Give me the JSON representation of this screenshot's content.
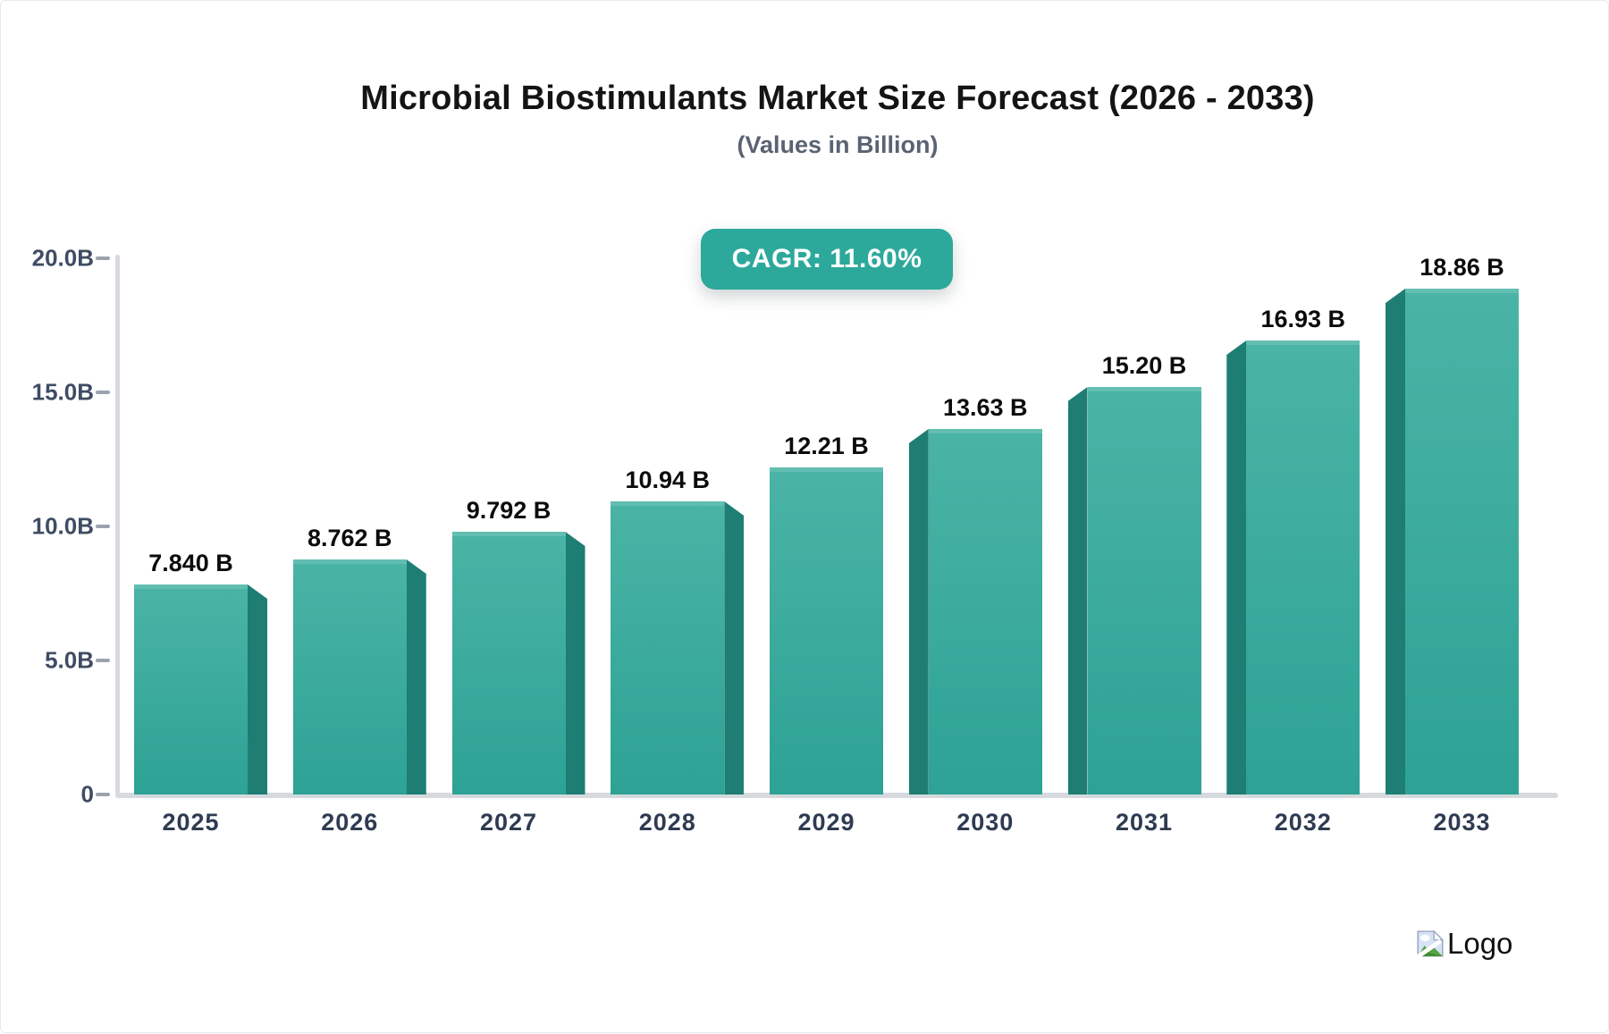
{
  "header": {
    "title": "Microbial Biostimulants Market Size Forecast (2026 - 2033)",
    "subtitle": "(Values in Billion)",
    "cagr_badge": "CAGR: 11.60%"
  },
  "footer": {
    "logo_text": "Logo"
  },
  "colors": {
    "accent": "#2ca99b",
    "bar_face_top": "#4ab4a6",
    "bar_face_bottom": "#2da295",
    "bar_side": "#1e7e73",
    "axis_line": "#d6dade",
    "tick_dash": "#9aa3ad",
    "y_label": "#3f4c63",
    "x_label": "#2e3b51",
    "value_label": "#0c0c0c"
  },
  "chart_data": {
    "type": "bar",
    "title": "Microbial Biostimulants Market Size Forecast (2026 - 2033)",
    "subtitle": "(Values in Billion)",
    "cagr": "CAGR: 11.60%",
    "categories": [
      "2025",
      "2026",
      "2027",
      "2028",
      "2029",
      "2030",
      "2031",
      "2032",
      "2033"
    ],
    "values": [
      7.84,
      8.762,
      9.792,
      10.94,
      12.21,
      13.63,
      15.2,
      16.93,
      18.86
    ],
    "value_labels": [
      "7.840 B",
      "8.762 B",
      "9.792 B",
      "10.94 B",
      "12.21 B",
      "13.63 B",
      "15.20 B",
      "16.93 B",
      "18.86 B"
    ],
    "xlabel": "",
    "ylabel": "",
    "ylim": [
      0,
      20
    ],
    "y_ticks": [
      {
        "value": 20,
        "label": "20.0B"
      },
      {
        "value": 15,
        "label": "15.0B"
      },
      {
        "value": 10,
        "label": "10.0B"
      },
      {
        "value": 5,
        "label": "5.0B"
      },
      {
        "value": 0,
        "label": "0"
      }
    ],
    "grid": false,
    "legend": false
  }
}
